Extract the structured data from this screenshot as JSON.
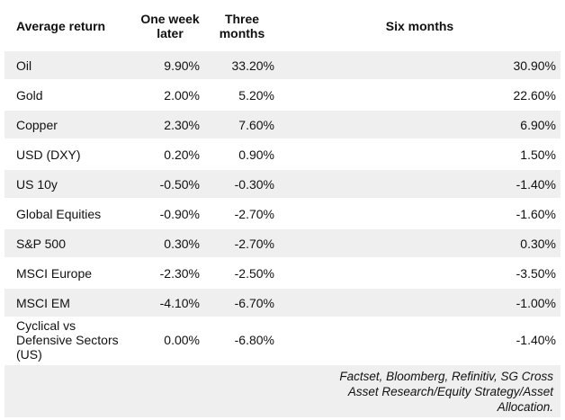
{
  "table": {
    "header": {
      "label": "Average return",
      "one_week": "One week later",
      "three_months": "Three months",
      "six_months": "Six months"
    },
    "rows": [
      {
        "label": "Oil",
        "values": [
          "9.90%",
          "33.20%",
          "30.90%"
        ]
      },
      {
        "label": "Gold",
        "values": [
          "2.00%",
          "5.20%",
          "22.60%"
        ]
      },
      {
        "label": "Copper",
        "values": [
          "2.30%",
          "7.60%",
          "6.90%"
        ]
      },
      {
        "label": "USD (DXY)",
        "values": [
          "0.20%",
          "0.90%",
          "1.50%"
        ]
      },
      {
        "label": "US 10y",
        "values": [
          "-0.50%",
          "-0.30%",
          "-1.40%"
        ]
      },
      {
        "label": "Global Equities",
        "values": [
          "-0.90%",
          "-2.70%",
          "-1.60%"
        ]
      },
      {
        "label": "S&P 500",
        "values": [
          "0.30%",
          "-2.70%",
          "0.30%"
        ]
      },
      {
        "label": "MSCI Europe",
        "values": [
          "-2.30%",
          "-2.50%",
          "-3.50%"
        ]
      },
      {
        "label": "MSCI EM",
        "values": [
          "-4.10%",
          "-6.70%",
          "-1.00%"
        ]
      },
      {
        "label": "Cyclical vs Defensive Sectors (US)",
        "values": [
          "0.00%",
          "-6.80%",
          "-1.40%"
        ]
      }
    ],
    "source_note": "Factset, Bloomberg, Refinitiv, SG Cross Asset Research/Equity Strategy/Asset Allocation."
  },
  "colors": {
    "row_stripe": "#efefef",
    "source_band": "#efefef",
    "text": "#111111",
    "background": "#ffffff"
  },
  "chart_data": {
    "type": "table",
    "title": "Average return",
    "columns": [
      "Average return",
      "One week later",
      "Three months",
      "Six months"
    ],
    "units": "percent",
    "rows": [
      [
        "Oil",
        9.9,
        33.2,
        30.9
      ],
      [
        "Gold",
        2.0,
        5.2,
        22.6
      ],
      [
        "Copper",
        2.3,
        7.6,
        6.9
      ],
      [
        "USD (DXY)",
        0.2,
        0.9,
        1.5
      ],
      [
        "US 10y",
        -0.5,
        -0.3,
        -1.4
      ],
      [
        "Global Equities",
        -0.9,
        -2.7,
        -1.6
      ],
      [
        "S&P 500",
        0.3,
        -2.7,
        0.3
      ],
      [
        "MSCI Europe",
        -2.3,
        -2.5,
        -3.5
      ],
      [
        "MSCI EM",
        -4.1,
        -6.7,
        -1.0
      ],
      [
        "Cyclical vs Defensive Sectors (US)",
        0.0,
        -6.8,
        -1.4
      ]
    ],
    "source": "Factset, Bloomberg, Refinitiv, SG Cross Asset Research/Equity Strategy/Asset Allocation."
  }
}
